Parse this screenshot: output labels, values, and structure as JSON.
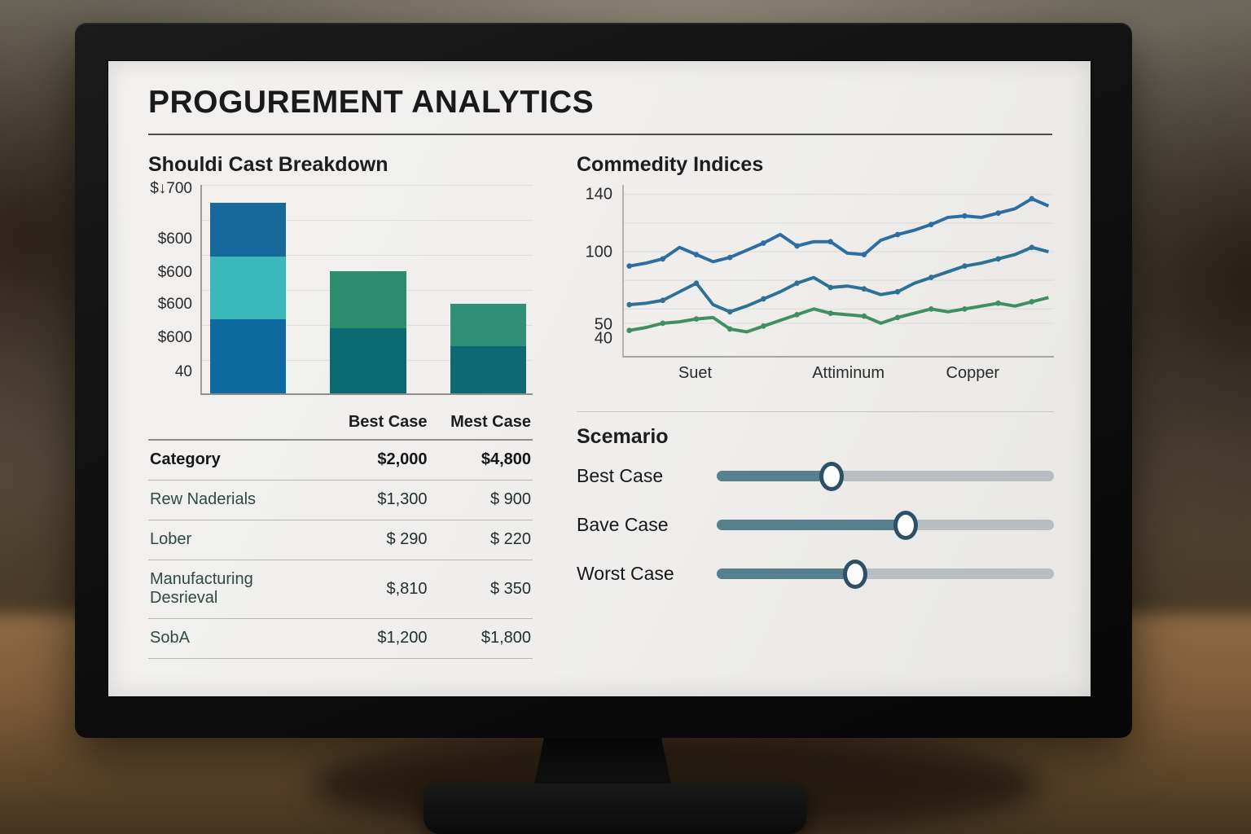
{
  "title": "PROGUREMENT ANALYTICS",
  "left_panel": {
    "chart_title": "Shouldi Cast Breakdown",
    "table": {
      "columns": [
        "",
        "Best Case",
        "Mest Case"
      ],
      "rows": [
        {
          "label": "Category",
          "bold": true,
          "best": "$2,000",
          "mest": "$4,800"
        },
        {
          "label": "Rew Naderials",
          "bold": false,
          "best": "$1,300",
          "mest": "$ 900"
        },
        {
          "label": "Lober",
          "bold": false,
          "best": "$ 290",
          "mest": "$ 220"
        },
        {
          "label": "Manufacturing Desrieval",
          "bold": false,
          "best": "$,810",
          "mest": "$ 350"
        },
        {
          "label": "SobA",
          "bold": false,
          "best": "$1,200",
          "mest": "$1,800"
        }
      ]
    }
  },
  "right_panel": {
    "chart_title": "Commedity Indices",
    "scenario": {
      "title": "Scemario",
      "track_fill_color": "#57808f",
      "track_empty_color": "#b7bdc0",
      "knob_border_color": "#2b5068",
      "sliders": [
        {
          "label": "Best Case",
          "value_pct": 34
        },
        {
          "label": "Bave Case",
          "value_pct": 56
        },
        {
          "label": "Worst Case",
          "value_pct": 41
        }
      ]
    }
  },
  "chart_data": [
    {
      "type": "bar",
      "stacked": true,
      "title": "Shouldi Cast Breakdown",
      "ylim": [
        0,
        700
      ],
      "y_tick_labels": [
        "$↓700",
        "$600",
        "$600",
        "$600",
        "$600",
        "40"
      ],
      "grid": true,
      "bars": [
        {
          "segments": [
            {
              "value": 250,
              "color": "#0e6aa0"
            },
            {
              "value": 210,
              "color": "#3bb8ba"
            },
            {
              "value": 180,
              "color": "#17699b"
            }
          ]
        },
        {
          "segments": [
            {
              "value": 220,
              "color": "#0c6a73"
            },
            {
              "value": 190,
              "color": "#2c8d6e"
            }
          ]
        },
        {
          "segments": [
            {
              "value": 160,
              "color": "#0d6a73"
            },
            {
              "value": 140,
              "color": "#2f9077"
            }
          ]
        }
      ]
    },
    {
      "type": "line",
      "title": "Commedity Indices",
      "ylim": [
        30,
        145
      ],
      "y_tick_labels": [
        "140",
        "100",
        "50",
        "40"
      ],
      "y_tick_values": [
        140,
        100,
        50,
        40
      ],
      "grid_values": [
        140,
        120,
        100,
        80,
        60,
        50
      ],
      "x_tick_labels": [
        "Suet",
        "Attiminum",
        "Copper"
      ],
      "grid": true,
      "legend": "none",
      "series": [
        {
          "color": "#2d6da3",
          "values": [
            90,
            92,
            95,
            103,
            98,
            93,
            96,
            101,
            106,
            112,
            104,
            107,
            107,
            99,
            98,
            108,
            112,
            115,
            119,
            124,
            125,
            124,
            127,
            130,
            137,
            132
          ]
        },
        {
          "color": "#2e7195",
          "values": [
            63,
            64,
            66,
            72,
            78,
            63,
            58,
            62,
            67,
            72,
            78,
            82,
            75,
            76,
            74,
            70,
            72,
            78,
            82,
            86,
            90,
            92,
            95,
            98,
            103,
            100
          ]
        },
        {
          "color": "#3f8f63",
          "values": [
            45,
            47,
            50,
            51,
            53,
            54,
            46,
            44,
            48,
            52,
            56,
            60,
            57,
            56,
            55,
            50,
            54,
            57,
            60,
            58,
            60,
            62,
            64,
            62,
            65,
            68
          ]
        }
      ]
    }
  ]
}
